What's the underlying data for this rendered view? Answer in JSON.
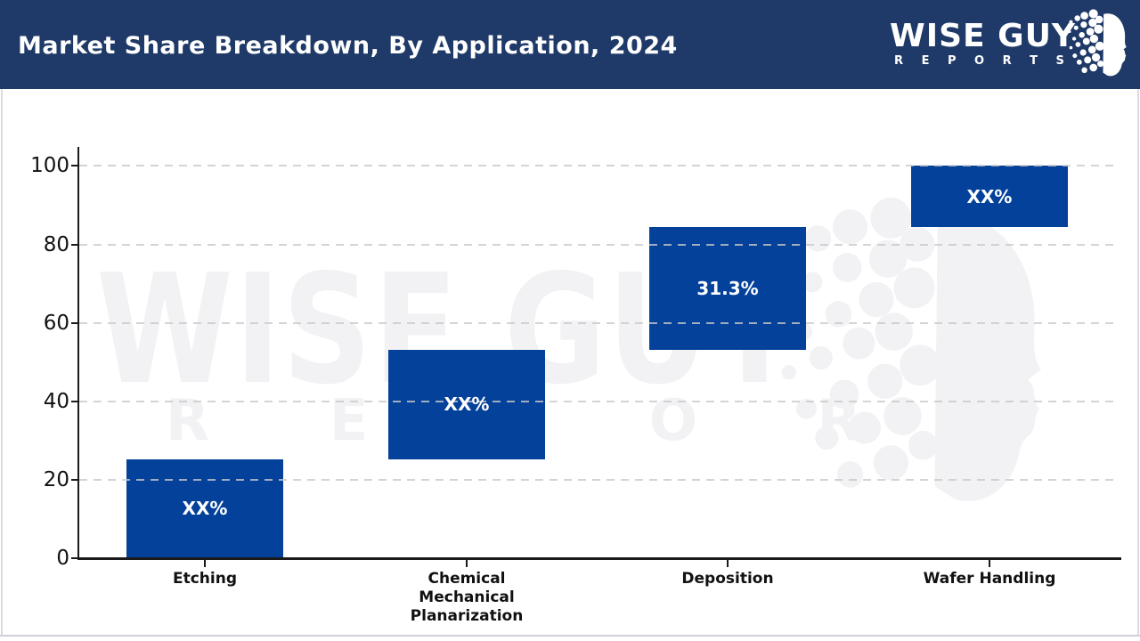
{
  "header": {
    "title": "Market Share Breakdown, By Application, 2024",
    "logo": {
      "line1": "WISE GUY",
      "line2": "R E P O R T S"
    }
  },
  "watermark": {
    "line1": "WISE GUY",
    "line2": "R E P O R T S"
  },
  "chart_data": {
    "type": "bar",
    "subtype": "floating-waterfall",
    "title": "Market Share Breakdown, By Application, 2024",
    "categories": [
      "Etching",
      "Chemical Mechanical Planarization",
      "Deposition",
      "Wafer Handling"
    ],
    "series": [
      {
        "name": "Market Share",
        "segments": [
          {
            "category": "Etching",
            "start": 0,
            "end": 25.2,
            "label": "XX%"
          },
          {
            "category": "Chemical Mechanical Planarization",
            "start": 25.2,
            "end": 53.2,
            "label": "XX%"
          },
          {
            "category": "Deposition",
            "start": 53.2,
            "end": 84.5,
            "label": "31.3%"
          },
          {
            "category": "Wafer Handling",
            "start": 84.5,
            "end": 100,
            "label": "XX%"
          }
        ]
      }
    ],
    "xlabel": "",
    "ylabel": "",
    "yticks": [
      0,
      20,
      40,
      60,
      80,
      100
    ],
    "ylim": [
      0,
      105
    ],
    "grid": "dashed-horizontal",
    "legend": "none"
  },
  "colors": {
    "header_bg": "#1f3a68",
    "bar": "#04419a",
    "bar_label": "#ffffff",
    "grid": "#c9c9c9",
    "axis": "#1a1a1a",
    "watermark": "#f2f2f4"
  }
}
